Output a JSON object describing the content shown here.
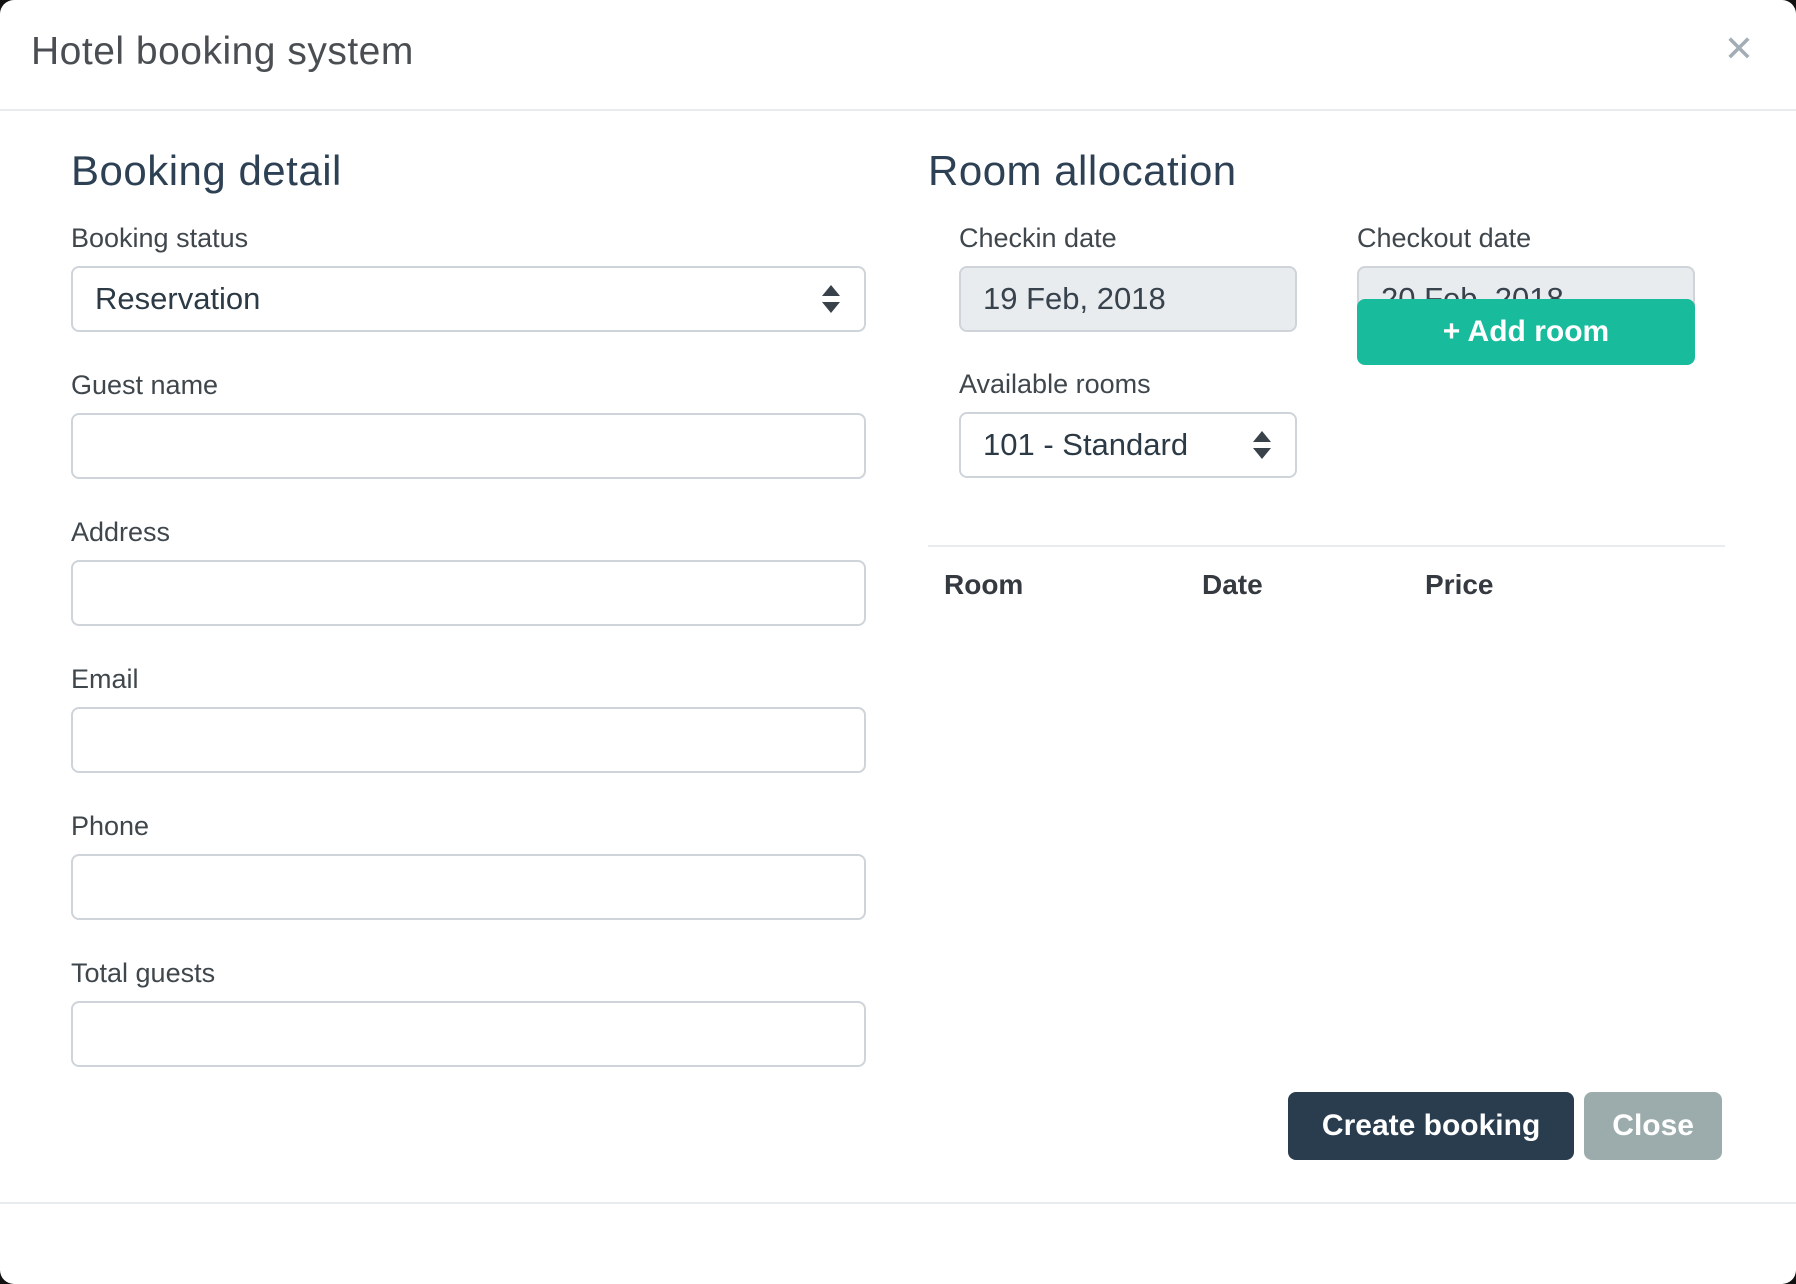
{
  "header": {
    "title": "Hotel booking system",
    "close_icon": "✕"
  },
  "booking_detail": {
    "heading": "Booking detail",
    "status": {
      "label": "Booking status",
      "value": "Reservation"
    },
    "fields": [
      {
        "label": "Guest name",
        "value": ""
      },
      {
        "label": "Address",
        "value": ""
      },
      {
        "label": "Email",
        "value": ""
      },
      {
        "label": "Phone",
        "value": ""
      },
      {
        "label": "Total guests",
        "value": ""
      }
    ]
  },
  "room_allocation": {
    "heading": "Room allocation",
    "checkin": {
      "label": "Checkin date",
      "value": "19 Feb, 2018"
    },
    "checkout": {
      "label": "Checkout date",
      "value": "20 Feb, 2018"
    },
    "available_rooms": {
      "label": "Available rooms",
      "value": "101 - Standard"
    },
    "add_room_button": "+ Add room",
    "table": {
      "columns": [
        "Room",
        "Date",
        "Price"
      ],
      "rows": []
    }
  },
  "footer_buttons": {
    "create": "Create booking",
    "close": "Close"
  },
  "colors": {
    "accent_teal": "#18bc9c",
    "primary_navy": "#2a3d4f",
    "muted_gray": "#9cacac",
    "disabled_input_bg": "#e9ecef",
    "heading_slate": "#2e4154"
  }
}
